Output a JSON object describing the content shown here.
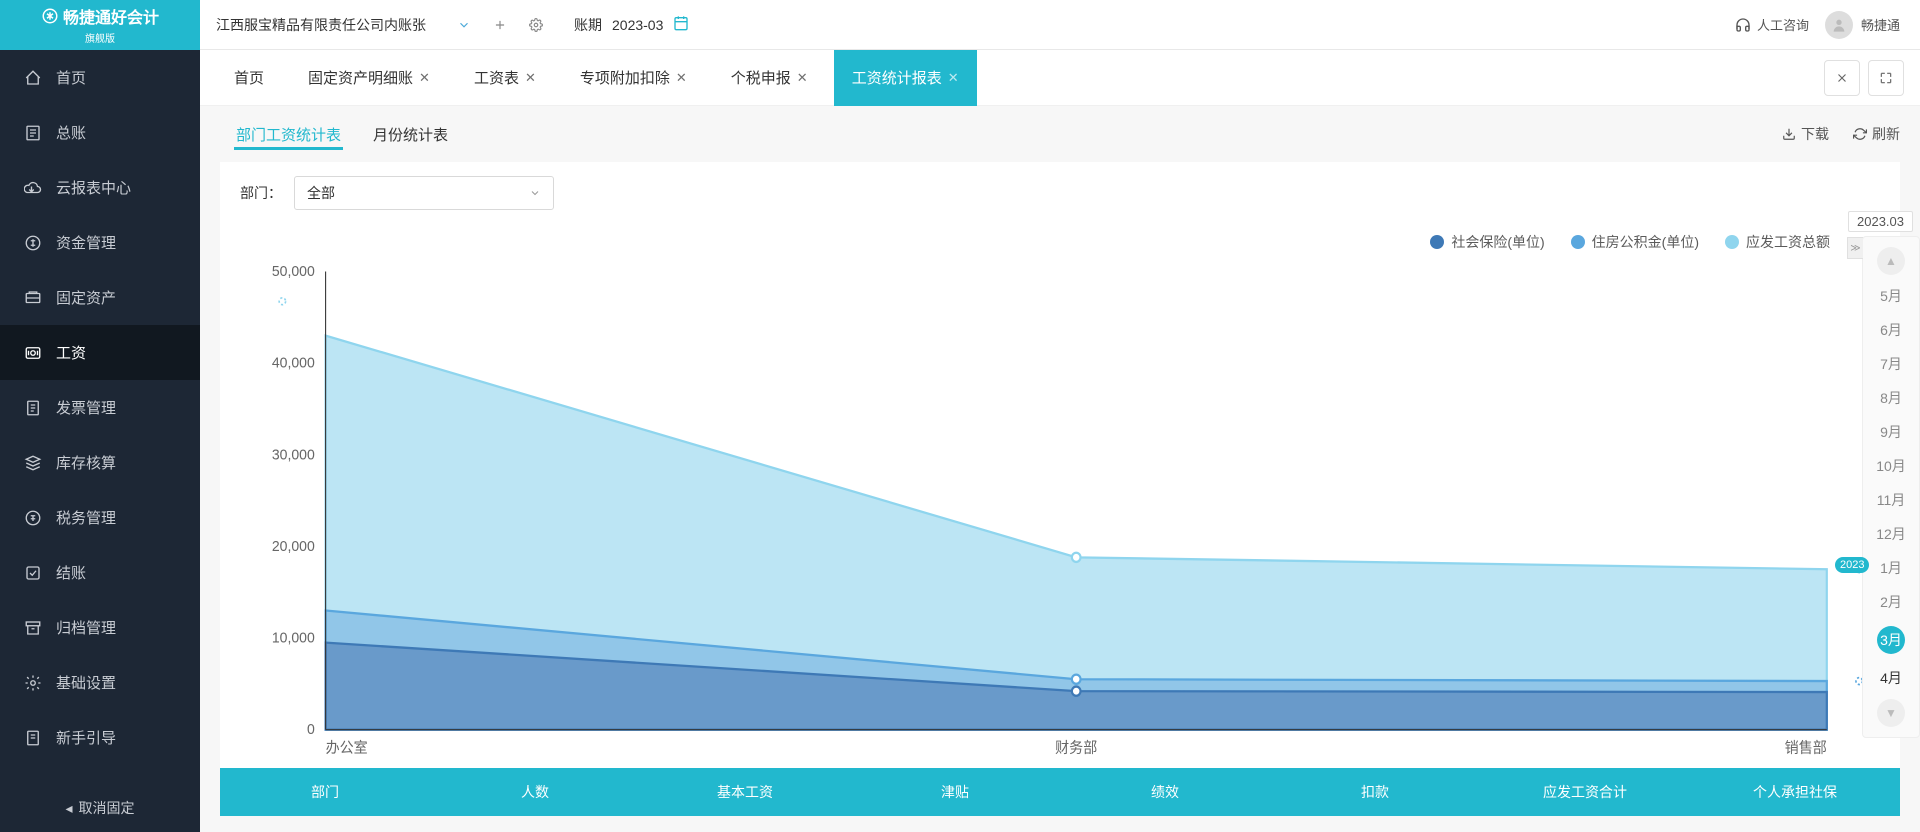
{
  "logo": {
    "main": "畅捷通好会计",
    "sub": "旗舰版"
  },
  "company_name": "江西服宝精品有限责任公司内账张",
  "period": {
    "label": "账期",
    "value": "2023-03"
  },
  "header": {
    "consult": "人工咨询",
    "user": "畅捷通"
  },
  "sidebar": {
    "items": [
      {
        "icon": "home",
        "label": "首页"
      },
      {
        "icon": "ledger",
        "label": "总账"
      },
      {
        "icon": "cloud",
        "label": "云报表中心"
      },
      {
        "icon": "fund",
        "label": "资金管理"
      },
      {
        "icon": "asset",
        "label": "固定资产"
      },
      {
        "icon": "salary",
        "label": "工资"
      },
      {
        "icon": "invoice",
        "label": "发票管理"
      },
      {
        "icon": "stock",
        "label": "库存核算"
      },
      {
        "icon": "tax",
        "label": "税务管理"
      },
      {
        "icon": "close",
        "label": "结账"
      },
      {
        "icon": "archive",
        "label": "归档管理"
      },
      {
        "icon": "settings",
        "label": "基础设置"
      },
      {
        "icon": "guide",
        "label": "新手引导"
      }
    ],
    "active_index": 5,
    "collapse": "取消固定"
  },
  "tabs": [
    {
      "label": "首页",
      "closable": false
    },
    {
      "label": "固定资产明细账",
      "closable": true
    },
    {
      "label": "工资表",
      "closable": true
    },
    {
      "label": "专项附加扣除",
      "closable": true
    },
    {
      "label": "个税申报",
      "closable": true
    },
    {
      "label": "工资统计报表",
      "closable": true
    }
  ],
  "tabs_active_index": 5,
  "subtabs": [
    "部门工资统计表",
    "月份统计表"
  ],
  "subtabs_active_index": 0,
  "actions": {
    "download": "下载",
    "refresh": "刷新"
  },
  "filter": {
    "label": "部门：",
    "value": "全部"
  },
  "chart": {
    "type": "area",
    "legend": [
      {
        "label": "社会保险(单位)",
        "color": "#3e79b6"
      },
      {
        "label": "住房公积金(单位)",
        "color": "#5aa7de"
      },
      {
        "label": "应发工资总额",
        "color": "#8fd5ee"
      }
    ],
    "categories": [
      "办公室",
      "财务部",
      "销售部"
    ],
    "series": {
      "social": [
        9500,
        4200,
        4100
      ],
      "housing": [
        13000,
        5500,
        5300
      ],
      "payable": [
        43000,
        18800,
        17500
      ]
    },
    "colors": {
      "social_fill": "#5f8fc2",
      "social_stroke": "#3e79b6",
      "housing_fill": "#7fb9e3",
      "housing_stroke": "#5aa7de",
      "payable_fill": "#a5dcf0",
      "payable_stroke": "#8fd5ee"
    },
    "ylim": [
      0,
      50000
    ],
    "ytick_step": 10000,
    "ytick_labels": [
      "0",
      "10,000",
      "20,000",
      "30,000",
      "40,000",
      "50,000"
    ],
    "background": "#ffffff",
    "axis_color": "#666666",
    "label_fontsize": 13
  },
  "table": {
    "columns": [
      "部门",
      "人数",
      "基本工资",
      "津贴",
      "绩效",
      "扣款",
      "应发工资合计",
      "个人承担社保"
    ]
  },
  "month_rail": {
    "year_label": "2023.03",
    "year_badge": "2023",
    "months": [
      "5月",
      "6月",
      "7月",
      "8月",
      "9月",
      "10月",
      "11月",
      "12月",
      "1月",
      "2月",
      "3月",
      "4月"
    ],
    "year_start_index": 8,
    "active_index": 10
  }
}
